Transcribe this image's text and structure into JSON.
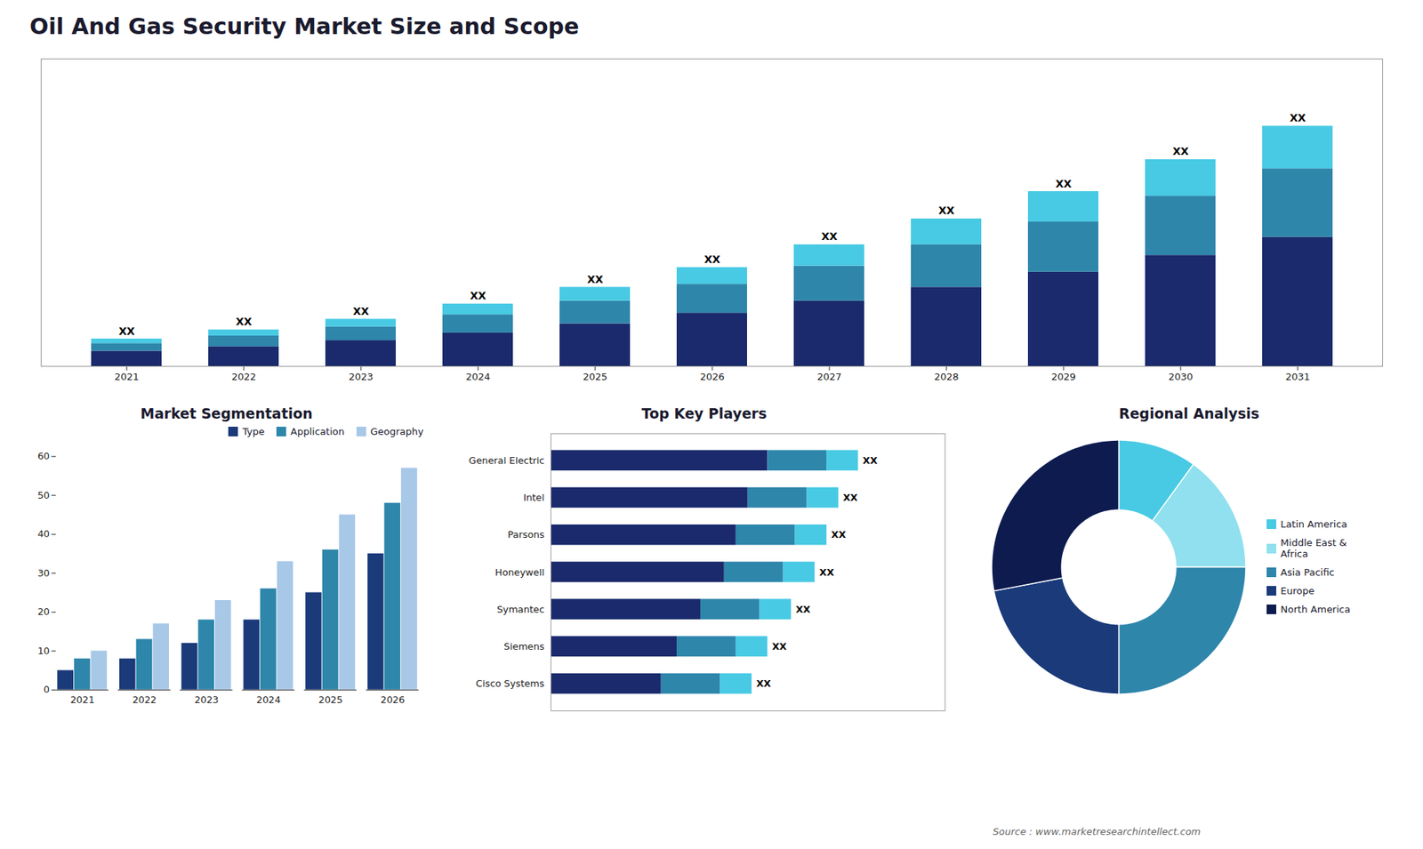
{
  "chart_data": [
    {
      "type": "bar",
      "title": "Oil And Gas Security Market Size and Scope",
      "stacked": true,
      "categories": [
        "2021",
        "2022",
        "2023",
        "2024",
        "2025",
        "2026",
        "2027",
        "2028",
        "2029",
        "2030",
        "2031"
      ],
      "series": [
        {
          "color": "#1a2a6c",
          "values": [
            1,
            1.3,
            1.7,
            2.2,
            2.8,
            3.5,
            4.3,
            5.2,
            6.2,
            7.3,
            8.5
          ]
        },
        {
          "color": "#2e86ab",
          "values": [
            0.5,
            0.7,
            0.9,
            1.2,
            1.5,
            1.9,
            2.3,
            2.8,
            3.3,
            3.9,
            4.5
          ]
        },
        {
          "color": "#48cae4",
          "values": [
            0.3,
            0.4,
            0.5,
            0.7,
            0.9,
            1.1,
            1.4,
            1.7,
            2.0,
            2.4,
            2.8
          ],
          "value_labels": [
            "XX",
            "XX",
            "XX",
            "XX",
            "XX",
            "XX",
            "XX",
            "XX",
            "XX",
            "XX",
            "XX"
          ]
        }
      ],
      "ylim": [
        0,
        20.224
      ],
      "yticks": [],
      "tick_labels": "x",
      "grid": false
    },
    {
      "type": "bar",
      "title": "Market Segmentation",
      "categories": [
        "2021",
        "2022",
        "2023",
        "2024",
        "2025",
        "2026"
      ],
      "series": [
        {
          "name": "Type",
          "color": "#1a3a7a",
          "values": [
            5,
            8,
            12,
            18,
            25,
            35
          ]
        },
        {
          "name": "Application",
          "color": "#2e86ab",
          "values": [
            8,
            13,
            18,
            26,
            36,
            48
          ]
        },
        {
          "name": "Geography",
          "color": "#a8c8e8",
          "values": [
            10,
            17,
            23,
            33,
            45,
            57
          ]
        }
      ],
      "ylim": [
        0,
        60
      ],
      "yticks": [
        0,
        10,
        20,
        30,
        40,
        50,
        60
      ],
      "legend": "top",
      "grid": false
    },
    {
      "type": "bar",
      "title": "Top Key Players",
      "orientation": "horizontal",
      "stacked": true,
      "categories": [
        "General Electric",
        "Intel",
        "Parsons",
        "Honeywell",
        "Symantec",
        "Siemens",
        "Cisco Systems"
      ],
      "series": [
        {
          "color": "#1a2a6c",
          "values": [
            0.55,
            0.5,
            0.47,
            0.44,
            0.38,
            0.32,
            0.28
          ]
        },
        {
          "color": "#2e86ab",
          "values": [
            0.15,
            0.15,
            0.15,
            0.15,
            0.15,
            0.15,
            0.15
          ]
        },
        {
          "color": "#48cae4",
          "values": [
            0.08,
            0.08,
            0.08,
            0.08,
            0.08,
            0.08,
            0.08
          ],
          "value_labels": [
            "XX",
            "XX",
            "XX",
            "XX",
            "XX",
            "XX",
            "XX"
          ]
        }
      ],
      "xlim": [
        0,
        1.0
      ],
      "xticks": [],
      "tick_labels": "y",
      "grid": false
    },
    {
      "type": "donut",
      "title": "Regional Analysis",
      "categories": [
        "Latin America",
        "Middle East &\nAfrica",
        "Asia Pacific",
        "Europe",
        "North America"
      ],
      "values": [
        10,
        15,
        25,
        22,
        28
      ],
      "colors": [
        "#48cae4",
        "#90e0ef",
        "#2e86ab",
        "#1a3a7a",
        "#0d1b4f"
      ],
      "legend": "right",
      "annotations": [
        "Source : www.marketresearchintellect.com"
      ]
    }
  ]
}
